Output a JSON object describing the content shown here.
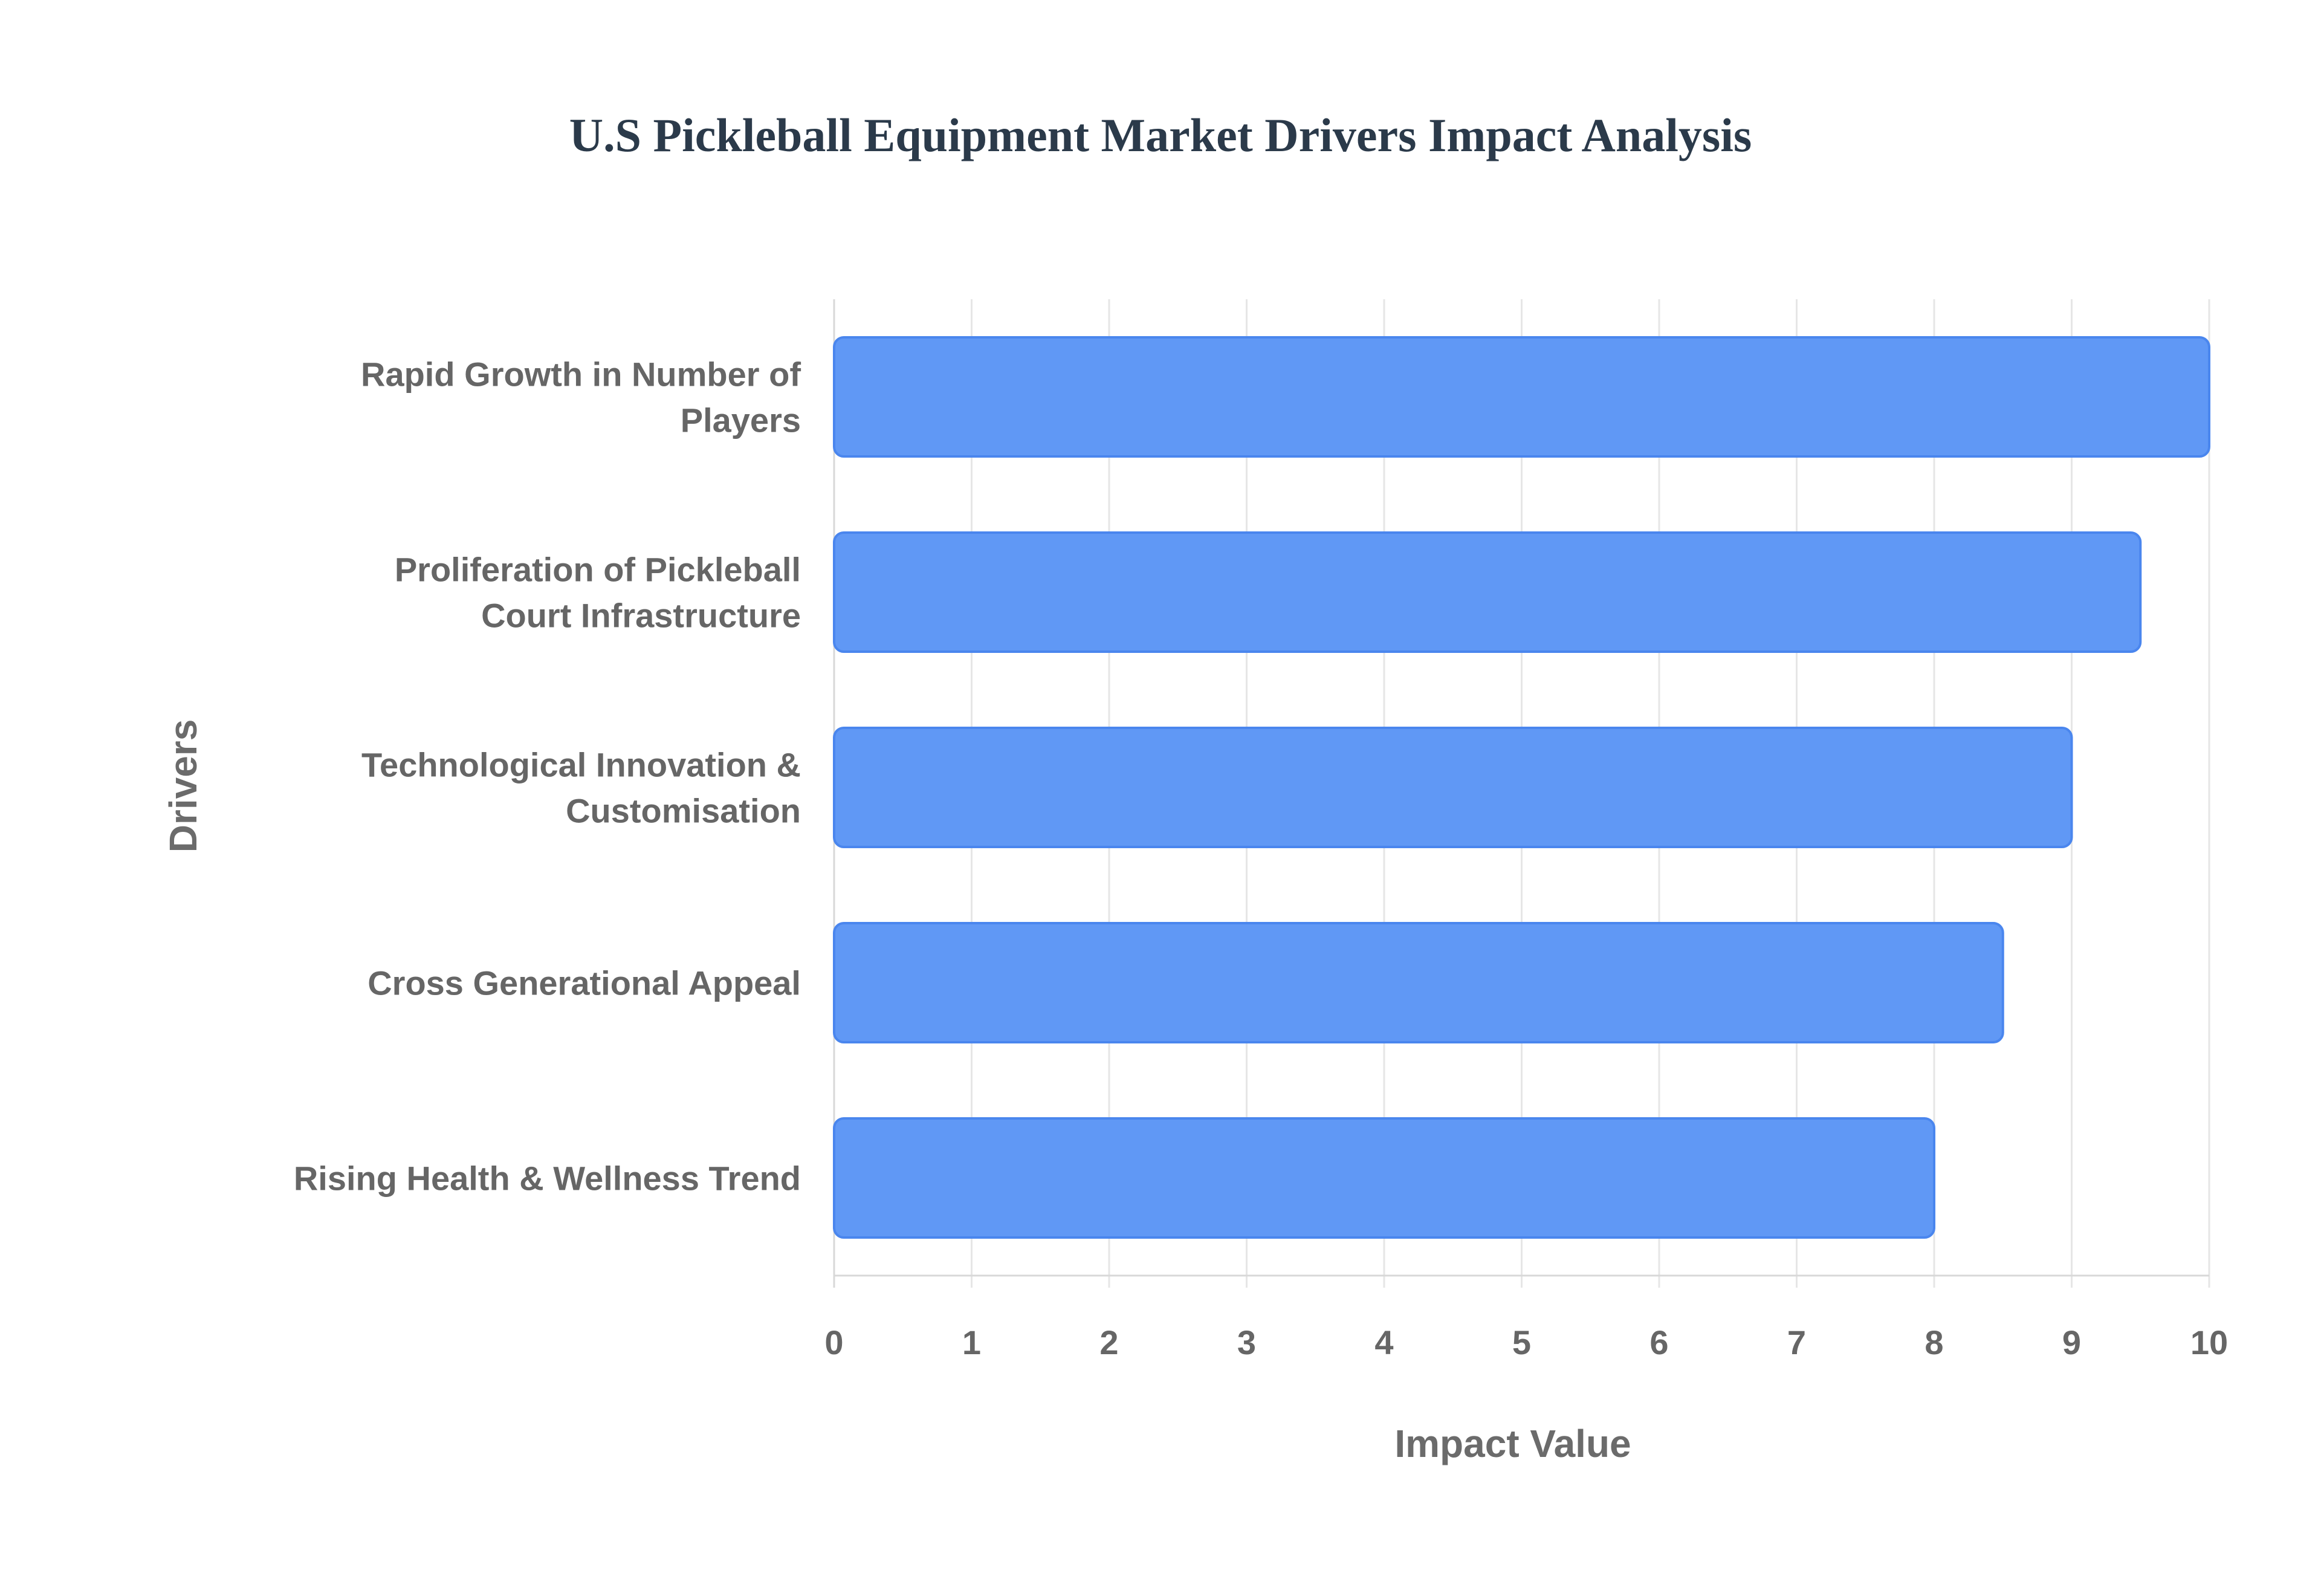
{
  "chart_data": {
    "type": "bar",
    "orientation": "horizontal",
    "title": "U.S Pickleball Equipment Market Drivers Impact Analysis",
    "xlabel": "Impact Value",
    "ylabel": "Drivers",
    "categories": [
      "Rapid Growth in Number of Players",
      "Proliferation of Pickleball Court Infrastructure",
      "Technological Innovation & Customisation",
      "Cross Generational Appeal",
      "Rising Health & Wellness Trend"
    ],
    "category_label_lines": [
      [
        "Rapid Growth in Number of",
        "Players"
      ],
      [
        "Proliferation of Pickleball",
        "Court Infrastructure"
      ],
      [
        "Technological Innovation &",
        "Customisation"
      ],
      [
        "Cross Generational Appeal"
      ],
      [
        "Rising Health & Wellness Trend"
      ]
    ],
    "values": [
      10,
      9.5,
      9,
      8.5,
      8
    ],
    "xlim": [
      0,
      10
    ],
    "xticks": [
      "0",
      "1",
      "2",
      "3",
      "4",
      "5",
      "6",
      "7",
      "8",
      "9",
      "10"
    ],
    "grid": true,
    "legend": "none",
    "colors": {
      "bar_fill": "#6098f5",
      "bar_stroke": "#4a86ee"
    }
  }
}
